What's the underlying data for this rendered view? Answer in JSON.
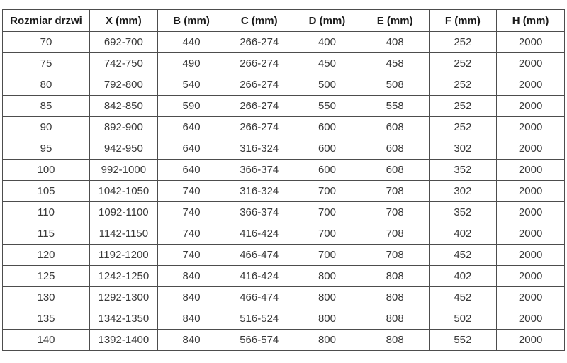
{
  "colors": {
    "background": "#ffffff",
    "border": "#4d4d4d",
    "header_text": "#1a1a1a",
    "cell_text": "#3a3a3a"
  },
  "chart_data": {
    "type": "table",
    "title": "",
    "columns": [
      "Rozmiar drzwi",
      "X (mm)",
      "B (mm)",
      "C (mm)",
      "D (mm)",
      "E (mm)",
      "F (mm)",
      "H (mm)"
    ],
    "rows": [
      [
        "70",
        "692-700",
        "440",
        "266-274",
        "400",
        "408",
        "252",
        "2000"
      ],
      [
        "75",
        "742-750",
        "490",
        "266-274",
        "450",
        "458",
        "252",
        "2000"
      ],
      [
        "80",
        "792-800",
        "540",
        "266-274",
        "500",
        "508",
        "252",
        "2000"
      ],
      [
        "85",
        "842-850",
        "590",
        "266-274",
        "550",
        "558",
        "252",
        "2000"
      ],
      [
        "90",
        "892-900",
        "640",
        "266-274",
        "600",
        "608",
        "252",
        "2000"
      ],
      [
        "95",
        "942-950",
        "640",
        "316-324",
        "600",
        "608",
        "302",
        "2000"
      ],
      [
        "100",
        "992-1000",
        "640",
        "366-374",
        "600",
        "608",
        "352",
        "2000"
      ],
      [
        "105",
        "1042-1050",
        "740",
        "316-324",
        "700",
        "708",
        "302",
        "2000"
      ],
      [
        "110",
        "1092-1100",
        "740",
        "366-374",
        "700",
        "708",
        "352",
        "2000"
      ],
      [
        "115",
        "1142-1150",
        "740",
        "416-424",
        "700",
        "708",
        "402",
        "2000"
      ],
      [
        "120",
        "1192-1200",
        "740",
        "466-474",
        "700",
        "708",
        "452",
        "2000"
      ],
      [
        "125",
        "1242-1250",
        "840",
        "416-424",
        "800",
        "808",
        "402",
        "2000"
      ],
      [
        "130",
        "1292-1300",
        "840",
        "466-474",
        "800",
        "808",
        "452",
        "2000"
      ],
      [
        "135",
        "1342-1350",
        "840",
        "516-524",
        "800",
        "808",
        "502",
        "2000"
      ],
      [
        "140",
        "1392-1400",
        "840",
        "566-574",
        "800",
        "808",
        "552",
        "2000"
      ]
    ]
  }
}
